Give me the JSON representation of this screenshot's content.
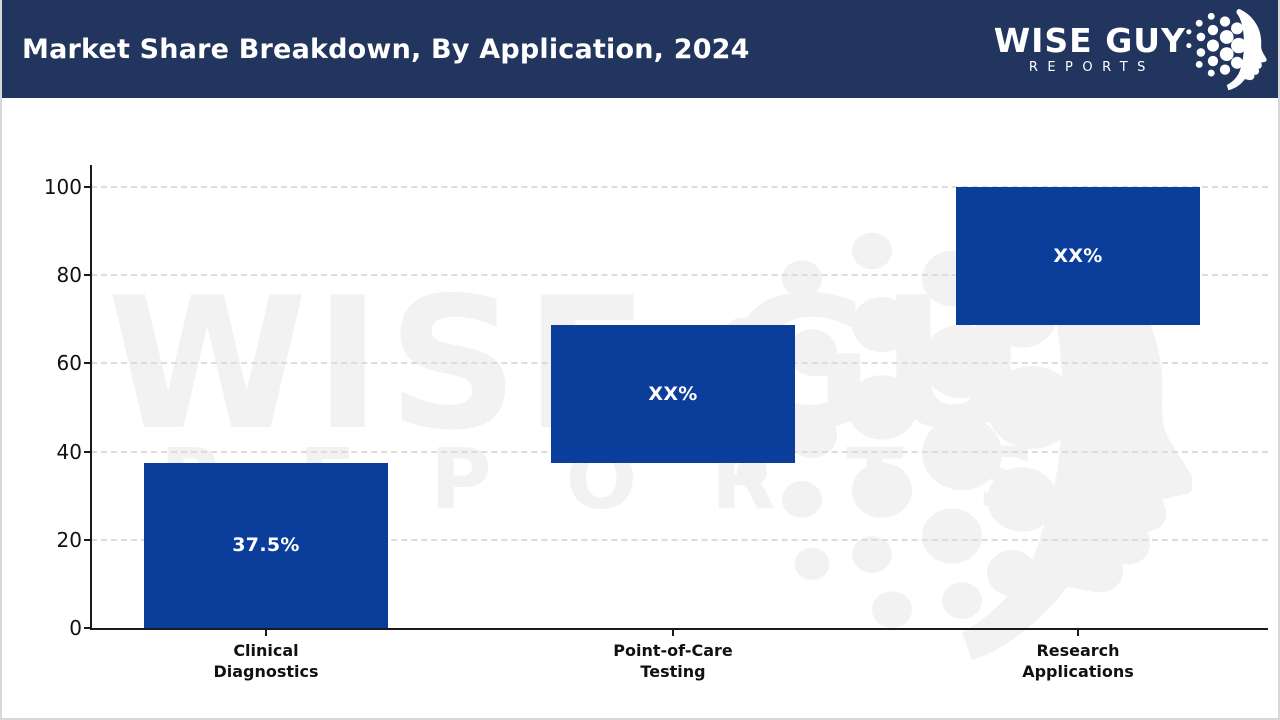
{
  "header": {
    "title": "Market Share Breakdown, By Application, 2024"
  },
  "logo": {
    "line1": "WISE GUY",
    "line2": "REPORTS",
    "face_icon": "dotted-head-profile"
  },
  "watermark": {
    "line1": "WISE GU",
    "line2": "REPORTS",
    "face_icon": "dotted-head-profile"
  },
  "colors": {
    "header_bg": "#21355e",
    "bar_fill": "#0b3e9a",
    "bar_label": "#ffffff",
    "grid": "#dcdcdc",
    "axis": "#1a1a1a",
    "watermark": "#f2f2f2"
  },
  "chart_data": {
    "type": "bar",
    "subtype": "waterfall",
    "title": "Market Share Breakdown, By Application, 2024",
    "categories": [
      [
        "Clinical",
        "Diagnostics"
      ],
      [
        "Point-of-Care",
        "Testing"
      ],
      [
        "Research",
        "Applications"
      ]
    ],
    "bars": [
      {
        "start": 0,
        "end": 37.5,
        "label": "37.5%"
      },
      {
        "start": 37.5,
        "end": 68.75,
        "label": "XX%"
      },
      {
        "start": 68.75,
        "end": 100,
        "label": "XX%"
      }
    ],
    "ylim": [
      0,
      100
    ],
    "yticks": [
      0,
      20,
      40,
      60,
      80,
      100
    ],
    "xlabel": "",
    "ylabel": "",
    "grid": "horizontal-dashed",
    "legend": "none"
  }
}
